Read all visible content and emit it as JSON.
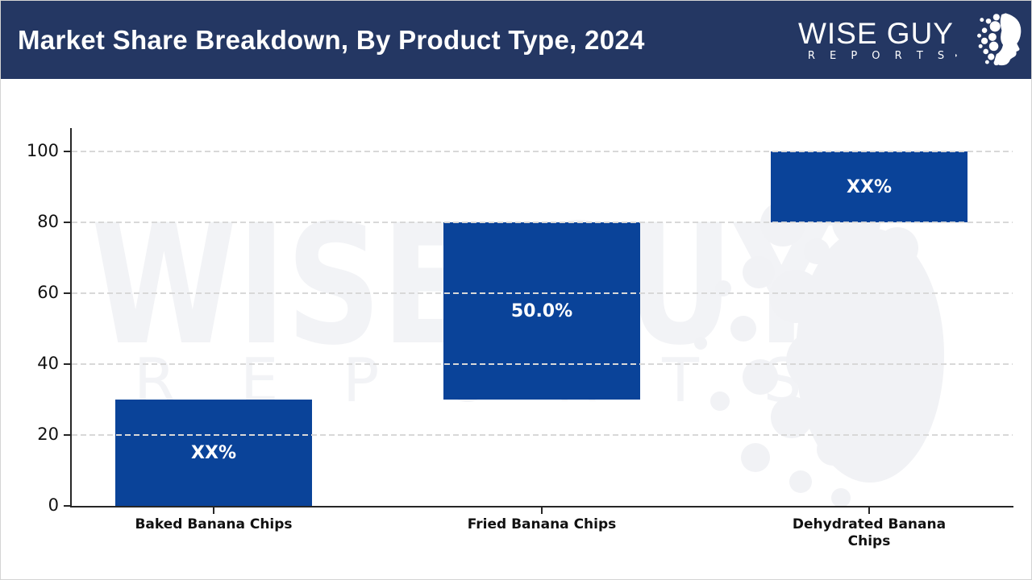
{
  "header": {
    "title": "Market Share Breakdown, By Product Type, 2024",
    "logo": {
      "name": "WISE GUY",
      "sub": "R E P O R T S"
    }
  },
  "watermark": {
    "name": "WISE GUY",
    "sub": "R E P O R T S"
  },
  "chart_data": {
    "type": "bar",
    "variant": "floating-segments",
    "title": "Market Share Breakdown, By Product Type, 2024",
    "categories": [
      "Baked Banana Chips",
      "Fried Banana Chips",
      "Dehydrated Banana Chips"
    ],
    "series": [
      {
        "name": "Baked Banana Chips",
        "range": [
          0,
          30
        ],
        "label": "XX%"
      },
      {
        "name": "Fried Banana Chips",
        "range": [
          30,
          80
        ],
        "label": "50.0%"
      },
      {
        "name": "Dehydrated Banana Chips",
        "range": [
          80,
          100
        ],
        "label": "XX%"
      }
    ],
    "xlabel": "",
    "ylabel": "",
    "yticks": [
      0,
      20,
      40,
      60,
      80,
      100
    ],
    "ylim": [
      0,
      105
    ],
    "grid": {
      "horizontal": true,
      "style": "dashed",
      "above_bars": true
    },
    "legend": "none",
    "colors": {
      "bar": "#0a4399",
      "bar_label": "#ffffff",
      "grid": "#d8d8d8",
      "axis": "#262626",
      "header_bg": "#243763",
      "watermark": "#f2f3f6"
    }
  }
}
